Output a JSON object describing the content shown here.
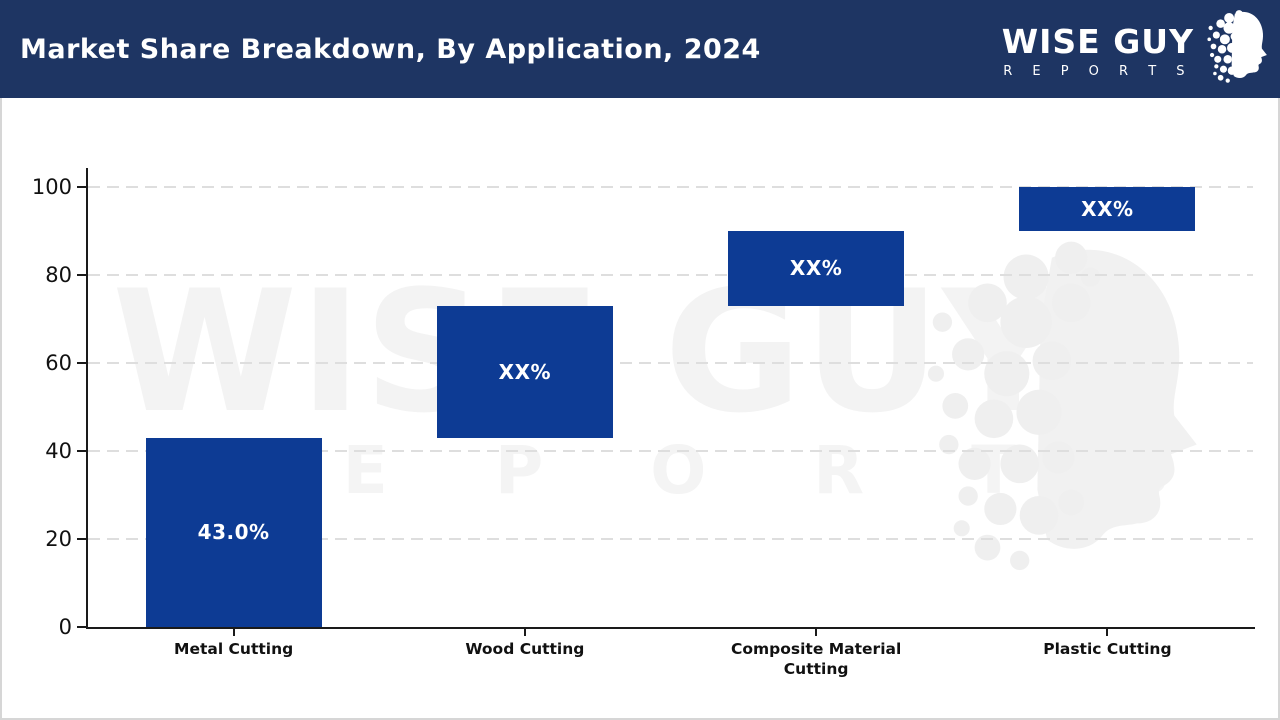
{
  "header": {
    "title": "Market Share Breakdown, By Application, 2024",
    "bg_color": "#1e3563",
    "logo": {
      "line1": "WISE GUY",
      "line2": "R E P O R T S"
    }
  },
  "watermark": {
    "line1": "WISE GUY",
    "line2": "R E P O R T S"
  },
  "chart_data": {
    "type": "bar",
    "subtype": "waterfall",
    "title": "Market Share Breakdown, By Application, 2024",
    "categories": [
      "Metal Cutting",
      "Wood Cutting",
      "Composite Material Cutting",
      "Plastic Cutting"
    ],
    "bars": [
      {
        "category": "Metal Cutting",
        "start": 0,
        "end": 43,
        "value": 43,
        "label": "43.0%"
      },
      {
        "category": "Wood Cutting",
        "start": 43,
        "end": 73,
        "value": 30,
        "label": "XX%"
      },
      {
        "category": "Composite Material Cutting",
        "start": 73,
        "end": 90,
        "value": 17,
        "label": "XX%"
      },
      {
        "category": "Plastic Cutting",
        "start": 90,
        "end": 100,
        "value": 10,
        "label": "XX%"
      }
    ],
    "ylim": [
      0,
      100
    ],
    "yticks": [
      0,
      20,
      40,
      60,
      80,
      100
    ],
    "xlabel": "",
    "ylabel": "",
    "grid": "dashed-horizontal",
    "legend": "none",
    "bar_color": "#0d3b94",
    "bar_label_color": "#ffffff",
    "axis_color": "#1a1a1a",
    "gridline_color": "#dedede"
  }
}
